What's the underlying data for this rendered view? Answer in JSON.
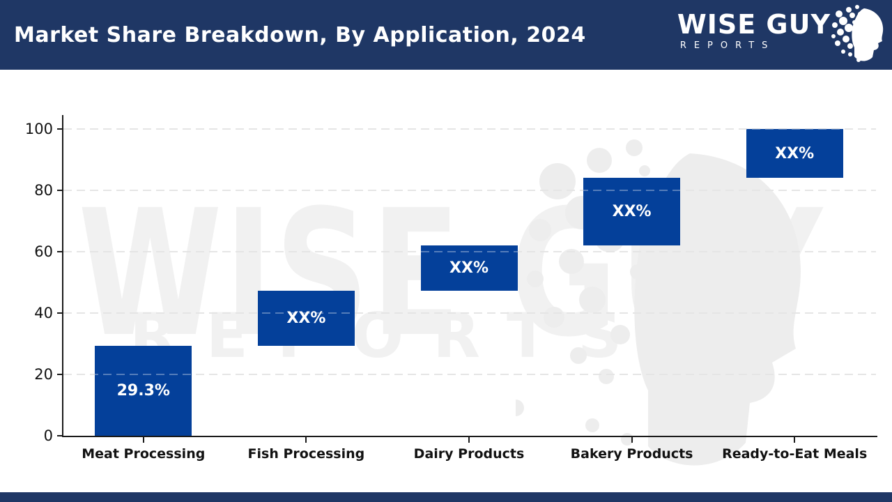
{
  "header": {
    "title": "Market Share Breakdown, By Application, 2024",
    "logo": {
      "line1": "WISE GUY",
      "line2": "REPORTS"
    }
  },
  "watermark": {
    "line1": "WISE GUY",
    "line2": "REPORTS"
  },
  "theme": {
    "header_bg": "#1F3765",
    "footer_bg": "#1F3765",
    "bar_color": "#04409A",
    "bar_label_color": "#FFFFFF",
    "grid_color": "#D9D9D9",
    "axis_color": "#1A1A1A",
    "watermark_color": "#F1F1F1"
  },
  "chart_data": {
    "type": "bar",
    "subtype": "waterfall-floating",
    "title": "Market Share Breakdown, By Application, 2024",
    "categories": [
      "Meat Processing",
      "Fish Processing",
      "Dairy Products",
      "Bakery Products",
      "Ready-to-Eat Meals"
    ],
    "series": [
      {
        "name": "Market Share (%)",
        "segments": [
          {
            "category": "Meat Processing",
            "start": 0,
            "end": 29.3,
            "label": "29.3%"
          },
          {
            "category": "Fish Processing",
            "start": 29.3,
            "end": 47.3,
            "label": "XX%"
          },
          {
            "category": "Dairy Products",
            "start": 47.3,
            "end": 62,
            "label": "XX%"
          },
          {
            "category": "Bakery Products",
            "start": 62,
            "end": 84,
            "label": "XX%"
          },
          {
            "category": "Ready-to-Eat Meals",
            "start": 84,
            "end": 100,
            "label": "XX%"
          }
        ]
      }
    ],
    "xlabel": "",
    "ylabel": "",
    "ylim": [
      0,
      105
    ],
    "yticks": [
      0,
      20,
      40,
      60,
      80,
      100
    ],
    "grid": "horizontal-dashed",
    "legend": "none"
  }
}
